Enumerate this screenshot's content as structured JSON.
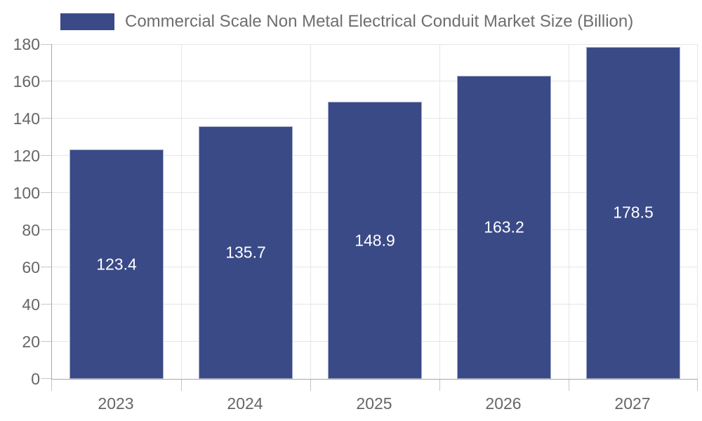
{
  "legend": {
    "label": "Commercial Scale Non Metal Electrical Conduit Market Size (Billion)"
  },
  "colors": {
    "bar": "#3a4a87",
    "grid": "#e6e6e6",
    "axis_line": "#a8a8a8",
    "tick": "#c6c6c6",
    "axis_label_text": "#666666",
    "legend_text": "#6e6e6e",
    "value_label_text": "#ffffff"
  },
  "chart_data": {
    "type": "bar",
    "title": "Commercial Scale Non Metal Electrical Conduit Market Size (Billion)",
    "categories": [
      "2023",
      "2024",
      "2025",
      "2026",
      "2027"
    ],
    "values": [
      123.4,
      135.7,
      148.9,
      163.2,
      178.5
    ],
    "value_labels": [
      "123.4",
      "135.7",
      "148.9",
      "163.2",
      "178.5"
    ],
    "xlabel": "",
    "ylabel": "",
    "ylim": [
      0,
      180
    ],
    "yticks": [
      0,
      20,
      40,
      60,
      80,
      100,
      120,
      140,
      160,
      180
    ],
    "grid": true,
    "legend_position": "top-left",
    "bar_labels_position": "center-inside"
  }
}
